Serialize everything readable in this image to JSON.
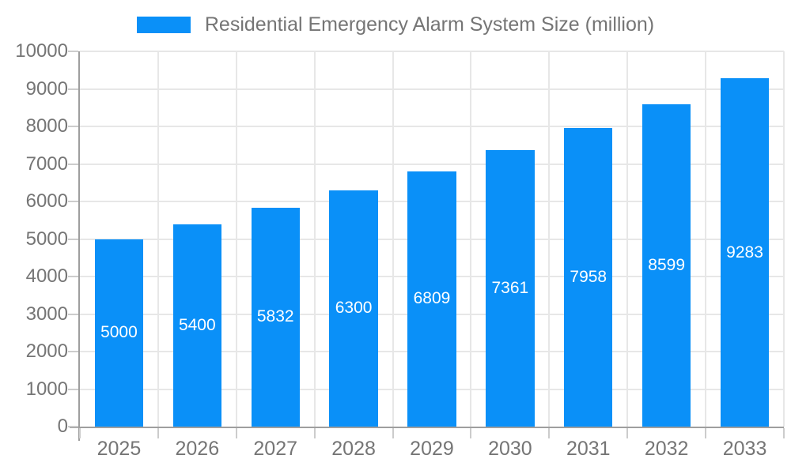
{
  "legend": {
    "label": "Residential Emergency Alarm System Size (million)"
  },
  "colors": {
    "bar": "#0a90f8",
    "grid": "#e7e7e7",
    "axis": "#9e9e9e",
    "tick": "#cccccc",
    "axis_label": "#757575",
    "bar_label": "#ffffff",
    "background": "#ffffff"
  },
  "chart_data": {
    "type": "bar",
    "title": "Residential Emergency Alarm System Size (million)",
    "categories": [
      "2025",
      "2026",
      "2027",
      "2028",
      "2029",
      "2030",
      "2031",
      "2032",
      "2033"
    ],
    "values": [
      5000,
      5400,
      5832,
      6300,
      6809,
      7361,
      7958,
      8599,
      9283
    ],
    "xlabel": "",
    "ylabel": "",
    "ylim": [
      0,
      10000
    ],
    "ytick_step": 1000,
    "yticks": [
      0,
      1000,
      2000,
      3000,
      4000,
      5000,
      6000,
      7000,
      8000,
      9000,
      10000
    ],
    "grid": true,
    "legend_position": "top",
    "bar_labels_inside": true
  }
}
